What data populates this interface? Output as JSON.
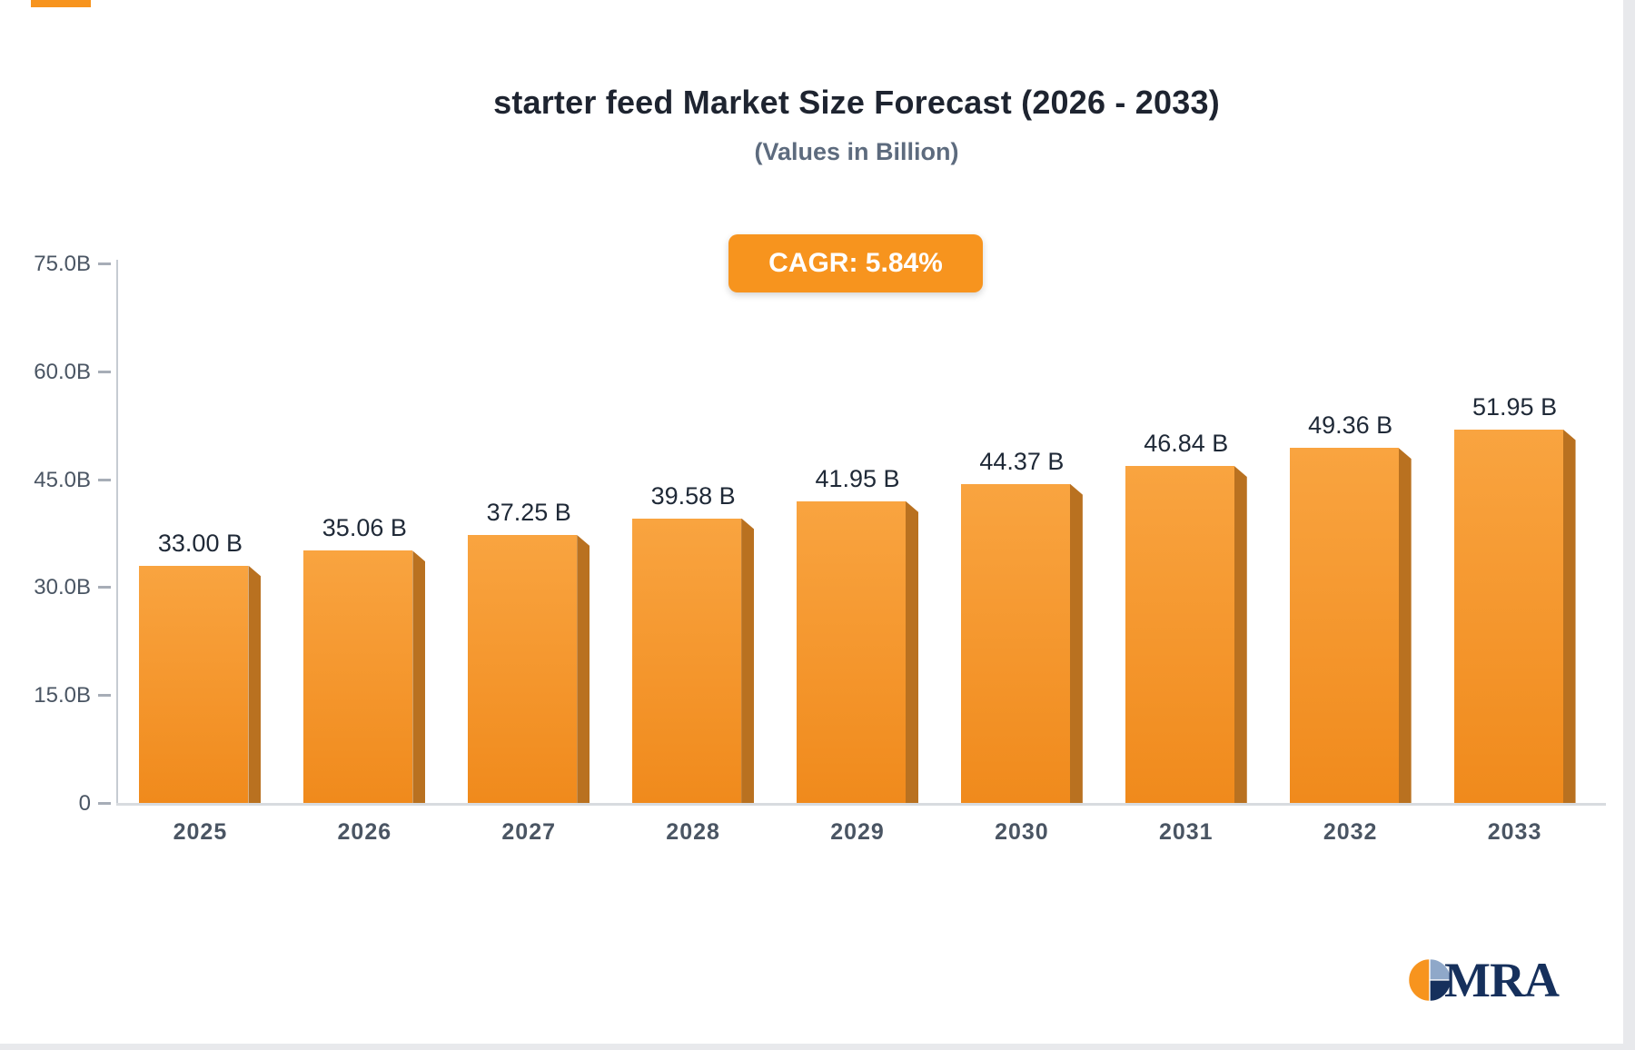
{
  "header": {
    "title": "starter feed Market Size Forecast (2026 - 2033)",
    "subtitle": "(Values in Billion)",
    "cagr_label": "CAGR: 5.84%"
  },
  "colors": {
    "accent": "#F7941E",
    "bar_light": "#F9A440",
    "bar_dark": "#F08A1C",
    "bar_side": "#B97120",
    "logo_navy": "#16305C",
    "logo_blue": "#8FA8C9"
  },
  "chart_data": {
    "type": "bar",
    "title": "starter feed Market Size Forecast (2026 - 2033)",
    "subtitle": "(Values in Billion)",
    "cagr": "5.84%",
    "categories": [
      "2025",
      "2026",
      "2027",
      "2028",
      "2029",
      "2030",
      "2031",
      "2032",
      "2033"
    ],
    "values": [
      33.0,
      35.06,
      37.25,
      39.58,
      41.95,
      44.37,
      46.84,
      49.36,
      51.95
    ],
    "value_labels": [
      "33.00 B",
      "35.06 B",
      "37.25 B",
      "39.58 B",
      "41.95 B",
      "44.37 B",
      "46.84 B",
      "49.36 B",
      "51.95 B"
    ],
    "xlabel": "",
    "ylabel": "",
    "ylim": [
      0,
      75
    ],
    "yticks": [
      0,
      15,
      30,
      45,
      60,
      75
    ],
    "ytick_labels": [
      "0",
      "15.0B",
      "30.0B",
      "45.0B",
      "60.0B",
      "75.0B"
    ],
    "grid": false,
    "legend": "none",
    "bar_color": "#F7941E"
  },
  "logo": {
    "text": "MRA"
  }
}
